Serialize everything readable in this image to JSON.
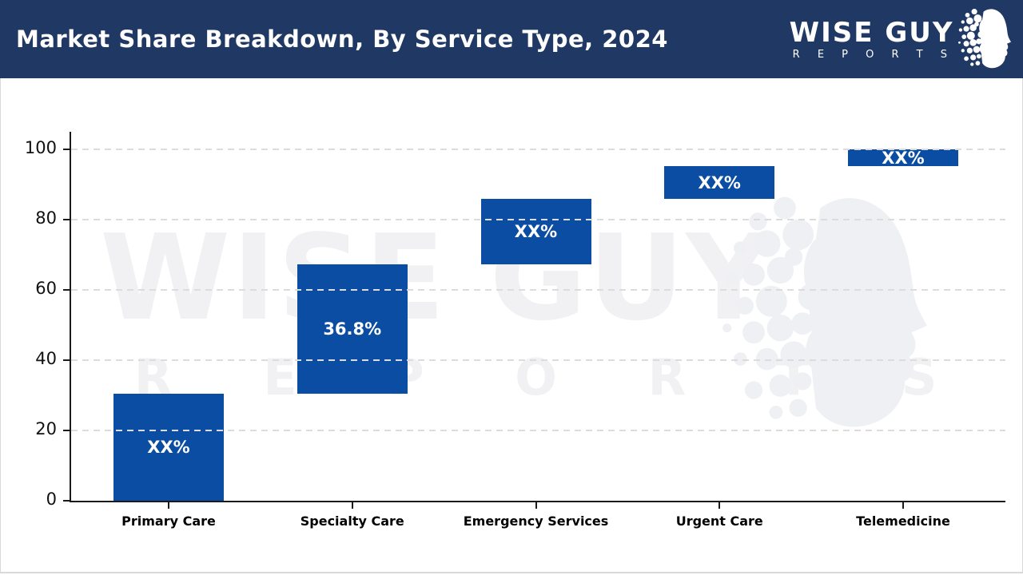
{
  "header": {
    "title": "Market Share Breakdown, By Service Type, 2024",
    "logo": {
      "line1": "WISE GUY",
      "line2": "R E P O R T S"
    }
  },
  "watermark": {
    "line1": "WISE GUY",
    "line2": "R E P O R T S"
  },
  "chart_data": {
    "type": "bar",
    "subtype": "floating-waterfall-bars",
    "title": "Market Share Breakdown, By Service Type, 2024",
    "categories": [
      "Primary Care",
      "Specialty Care",
      "Emergency Services",
      "Urgent Care",
      "Telemedicine"
    ],
    "segments": [
      {
        "category": "Primary Care",
        "start": 0,
        "end": 30.5,
        "label": "XX%"
      },
      {
        "category": "Specialty Care",
        "start": 30.5,
        "end": 67.3,
        "label": "36.8%"
      },
      {
        "category": "Emergency Services",
        "start": 67.3,
        "end": 85.9,
        "label": "XX%"
      },
      {
        "category": "Urgent Care",
        "start": 85.9,
        "end": 95.2,
        "label": "XX%"
      },
      {
        "category": "Telemedicine",
        "start": 95.2,
        "end": 100,
        "label": "XX%"
      }
    ],
    "ylim": [
      0,
      100
    ],
    "yticks": [
      0,
      20,
      40,
      60,
      80,
      100
    ],
    "xlabel": "",
    "ylabel": "",
    "grid": "horizontal-dashed",
    "legend": null
  },
  "colors": {
    "header_bg": "#1f3864",
    "bar": "#0b4da2",
    "grid": "#dcdcdc",
    "axis": "#1a1a1a",
    "bar_label_text": "#ffffff",
    "tick_label_text": "#111111",
    "category_label_text": "#000000",
    "watermark": "#f1f1f4",
    "edge_border": "#d9d9d9"
  }
}
